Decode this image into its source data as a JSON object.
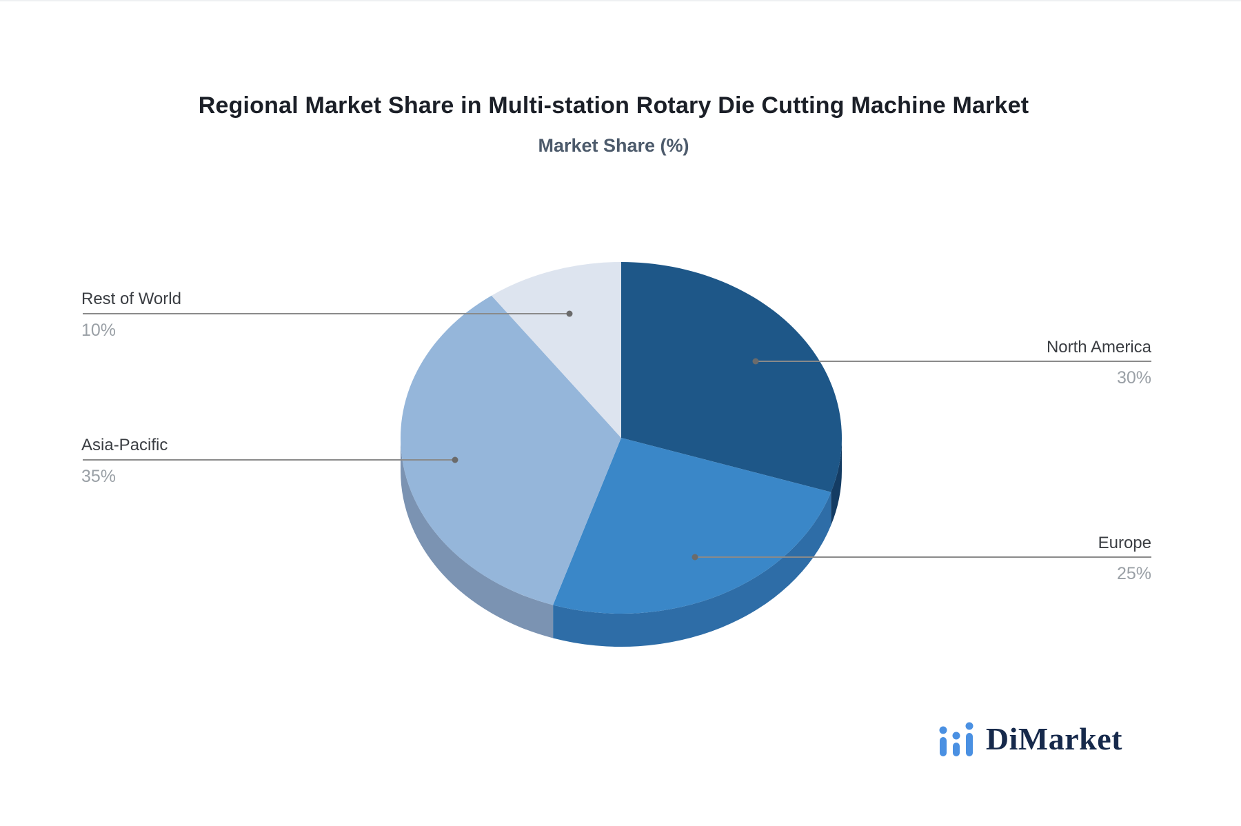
{
  "chart_data": {
    "type": "pie",
    "style": "3d-pie",
    "title": "Regional Market Share in Multi-station Rotary Die Cutting Machine Market",
    "subtitle": "Market Share (%)",
    "labels": [
      "North America",
      "Europe",
      "Asia-Pacific",
      "Rest of World"
    ],
    "values": [
      30,
      25,
      35,
      10
    ],
    "display_values": [
      "30%",
      "25%",
      "35%",
      "10%"
    ],
    "colors": [
      "#1e5788",
      "#3a87c8",
      "#95b6da",
      "#dde4ef"
    ],
    "side_colors": [
      "#143c63",
      "#2e6da7",
      "#7b93b2",
      "#b9c6dc"
    ],
    "start_angle_deg": 0,
    "direction": "clockwise",
    "legend_position": "callout-labels",
    "leader_line_color": "#8a8a8a",
    "leader_dot_color": "#6b6b6b"
  },
  "branding": {
    "logo_text": "DiMarket",
    "logo_icon": "bar-chart-with-dots-icon",
    "logo_accent_color": "#4a90e2"
  }
}
